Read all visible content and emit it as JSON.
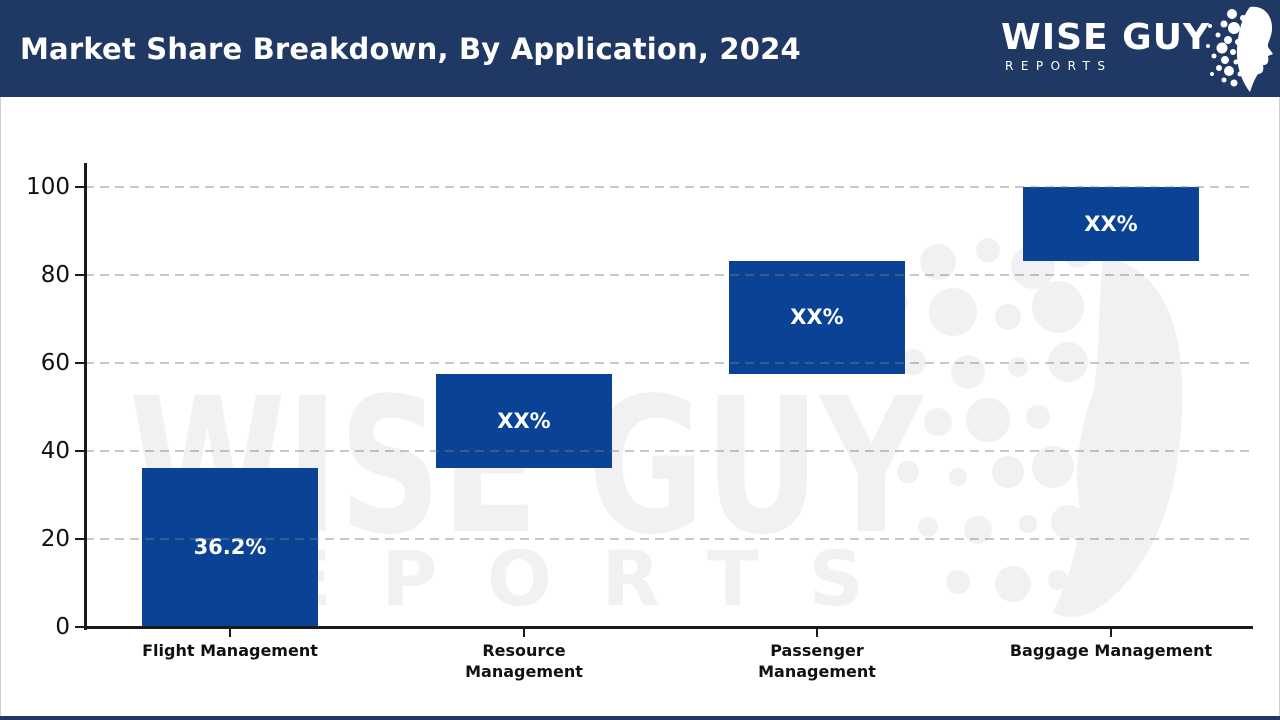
{
  "header": {
    "title": "Market Share Breakdown, By Application, 2024",
    "logo": {
      "title": "WISE GUY",
      "subtitle": "REPORTS"
    }
  },
  "watermark": {
    "wordmark": "WISE GUY",
    "subtext": "REPORTS"
  },
  "footer": {},
  "chart_data": {
    "type": "bar",
    "subtype": "waterfall",
    "title": "Market Share Breakdown, By Application, 2024",
    "categories": [
      "Flight Management",
      "Resource Management",
      "Passenger Management",
      "Baggage Management"
    ],
    "category_label_lines": [
      [
        "Flight Management"
      ],
      [
        "Resource",
        "Management"
      ],
      [
        "Passenger",
        "Management"
      ],
      [
        "Baggage Management"
      ]
    ],
    "segments": [
      {
        "category": "Flight Management",
        "start": 0,
        "end": 36.2,
        "label": "36.2%"
      },
      {
        "category": "Resource Management",
        "start": 36.2,
        "end": 57.6,
        "label": "XX%"
      },
      {
        "category": "Passenger Management",
        "start": 57.6,
        "end": 83.2,
        "label": "XX%"
      },
      {
        "category": "Baggage Management",
        "start": 83.2,
        "end": 100,
        "label": "XX%"
      }
    ],
    "bar_labels": [
      "36.2%",
      "XX%",
      "XX%",
      "XX%"
    ],
    "xlabel": "",
    "ylabel": "",
    "ylim": [
      0,
      100
    ],
    "yticks": [
      0,
      20,
      40,
      60,
      80,
      100
    ],
    "ytick_labels": [
      "0",
      "20",
      "40",
      "60",
      "80",
      "100"
    ],
    "grid": "horizontal-dashed",
    "legend": "none",
    "bar_color": "#0a4296"
  },
  "colors": {
    "header_bg": "#1f3864",
    "bar": "#0a4296",
    "axis": "#1a1a1a",
    "grid": "#bdbdbd",
    "watermark": "#f1f1f4",
    "border": "#cfcfcf",
    "text": "#111111",
    "title_text": "#ffffff"
  }
}
